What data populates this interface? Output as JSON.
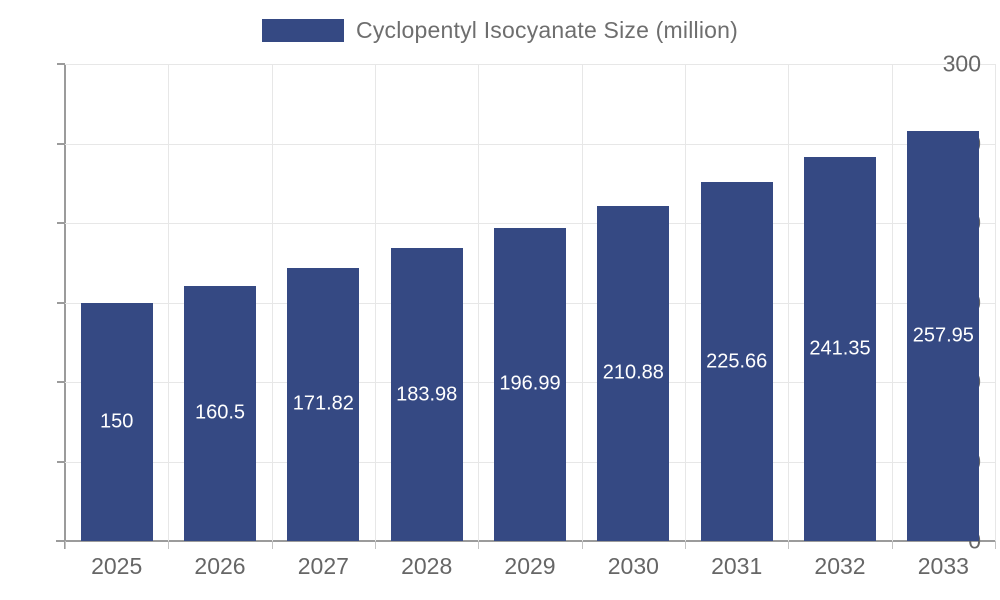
{
  "chart_data": {
    "type": "bar",
    "title": "",
    "legend": "Cyclopentyl Isocyanate Size (million)",
    "legend_position": "top-center",
    "categories": [
      "2025",
      "2026",
      "2027",
      "2028",
      "2029",
      "2030",
      "2031",
      "2032",
      "2033"
    ],
    "values": [
      150,
      160.5,
      171.82,
      183.98,
      196.99,
      210.88,
      225.66,
      241.35,
      257.95
    ],
    "value_labels": [
      "150",
      "160.5",
      "171.82",
      "183.98",
      "196.99",
      "210.88",
      "225.66",
      "241.35",
      "257.95"
    ],
    "xlabel": "",
    "ylabel": "",
    "ylim": [
      0,
      300
    ],
    "yticks": [
      0,
      50,
      100,
      150,
      200,
      250,
      300
    ],
    "grid": true,
    "bar_color": "#354983",
    "value_label_color": "#ffffff",
    "axis_color": "#9b9b9b",
    "grid_color": "#e7e7e7",
    "tick_text_color": "#666666",
    "legend_text_color": "#6e6e6e"
  }
}
